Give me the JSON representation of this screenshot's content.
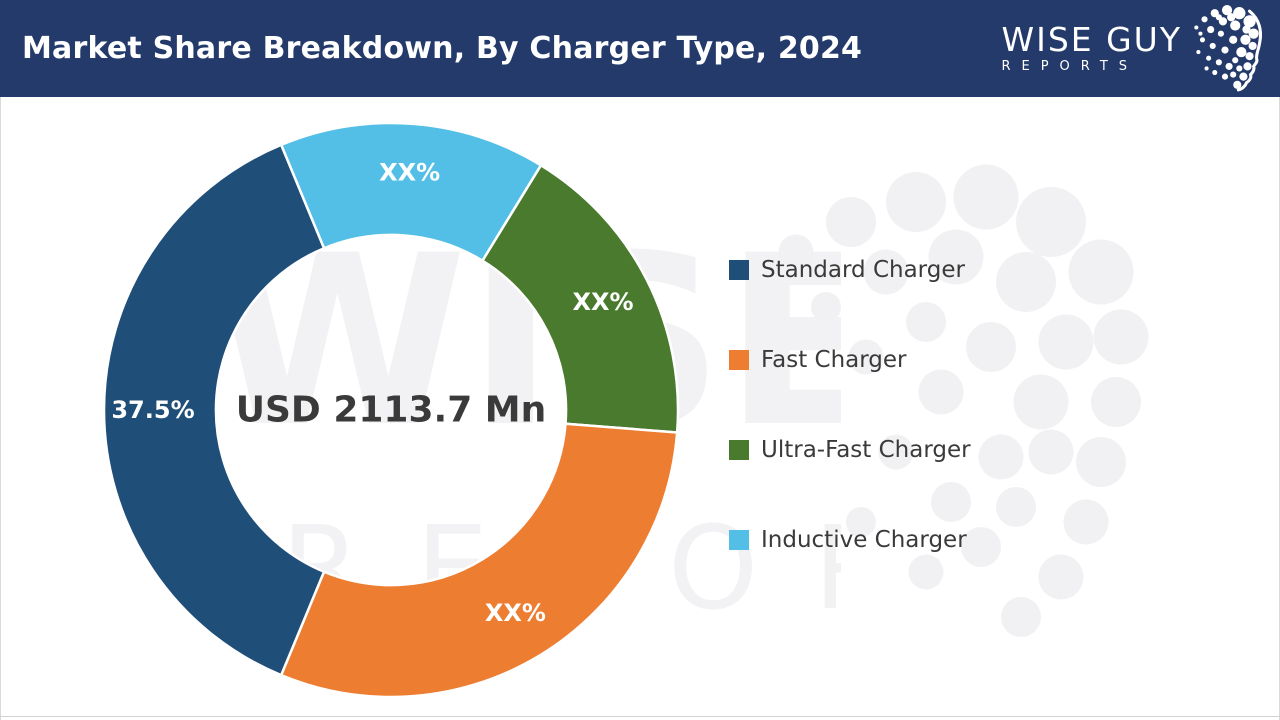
{
  "header": {
    "title": "Market Share Breakdown, By Charger Type, 2024",
    "logo": {
      "wordmark": "WISE GUY",
      "subtext": "REPORTS"
    }
  },
  "watermark": {
    "line1": "WISE GUY",
    "line2": "REPORTS"
  },
  "legend": {
    "items": [
      {
        "label": "Standard Charger",
        "color": "#1F4E79"
      },
      {
        "label": "Fast Charger",
        "color": "#ED7D31"
      },
      {
        "label": "Ultra-Fast Charger",
        "color": "#497A2E"
      },
      {
        "label": "Inductive Charger",
        "color": "#53BFE6"
      }
    ]
  },
  "chart_data": {
    "type": "donut",
    "title": "Market Share Breakdown, By Charger Type, 2024",
    "center_label": "USD 2113.7 Mn",
    "start_angle_deg": -22.5,
    "direction": "clockwise",
    "inner_radius_ratio": 0.61,
    "legend_position": "right",
    "slices": [
      {
        "label": "Inductive Charger",
        "value_pct": 15,
        "display_label": "XX%",
        "color": "#53BFE6"
      },
      {
        "label": "Ultra-Fast Charger",
        "value_pct": 17.5,
        "display_label": "XX%",
        "color": "#497A2E"
      },
      {
        "label": "Fast Charger",
        "value_pct": 30,
        "display_label": "XX%",
        "color": "#ED7D31"
      },
      {
        "label": "Standard Charger",
        "value_pct": 37.5,
        "display_label": "37.5%",
        "color": "#1F4E79"
      }
    ]
  }
}
